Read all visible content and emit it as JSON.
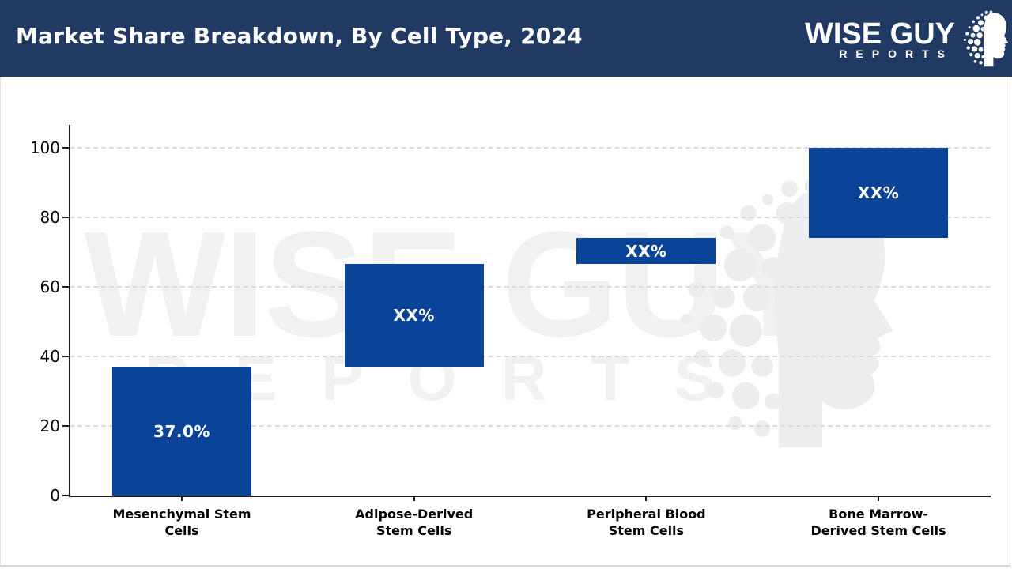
{
  "header": {
    "title": "Market Share Breakdown, By Cell Type, 2024",
    "logo": {
      "line1": "WISE GUY",
      "line2": "REPORTS",
      "face_icon": "dotted-face-profile"
    }
  },
  "watermark": {
    "line1": "WISE GUY",
    "line2": "REPORTS",
    "face_icon": "dotted-face-profile"
  },
  "colors": {
    "header_bg": "#213a63",
    "bar_fill": "#0b4399",
    "bar_label_text": "#ffffff",
    "gridline": "#d9d9d9",
    "axis": "#1a1a1a",
    "watermark": "#f1f1f4",
    "page_border": "#d9d9d9"
  },
  "chart_data": {
    "type": "bar",
    "subtype": "floating_segment_waterfall",
    "title": "Market Share Breakdown, By Cell Type, 2024",
    "xlabel": "",
    "ylabel": "",
    "ylim": [
      0,
      106
    ],
    "yticks": [
      0,
      20,
      40,
      60,
      80,
      100
    ],
    "grid": "horizontal-dashed",
    "legend": "none",
    "bars": [
      {
        "category": "Mesenchymal Stem Cells",
        "label_lines": [
          "Mesenchymal Stem",
          "Cells"
        ],
        "start": 0,
        "end": 37.0,
        "label": "37.0%"
      },
      {
        "category": "Adipose-Derived Stem Cells",
        "label_lines": [
          "Adipose-Derived",
          "Stem Cells"
        ],
        "start": 37.0,
        "end": 66.5,
        "label": "XX%"
      },
      {
        "category": "Peripheral Blood Stem Cells",
        "label_lines": [
          "Peripheral Blood",
          "Stem Cells"
        ],
        "start": 66.5,
        "end": 74.0,
        "label": "XX%"
      },
      {
        "category": "Bone Marrow-Derived Stem Cells",
        "label_lines": [
          "Bone Marrow-",
          "Derived Stem Cells"
        ],
        "start": 74.0,
        "end": 100.0,
        "label": "XX%"
      }
    ]
  }
}
